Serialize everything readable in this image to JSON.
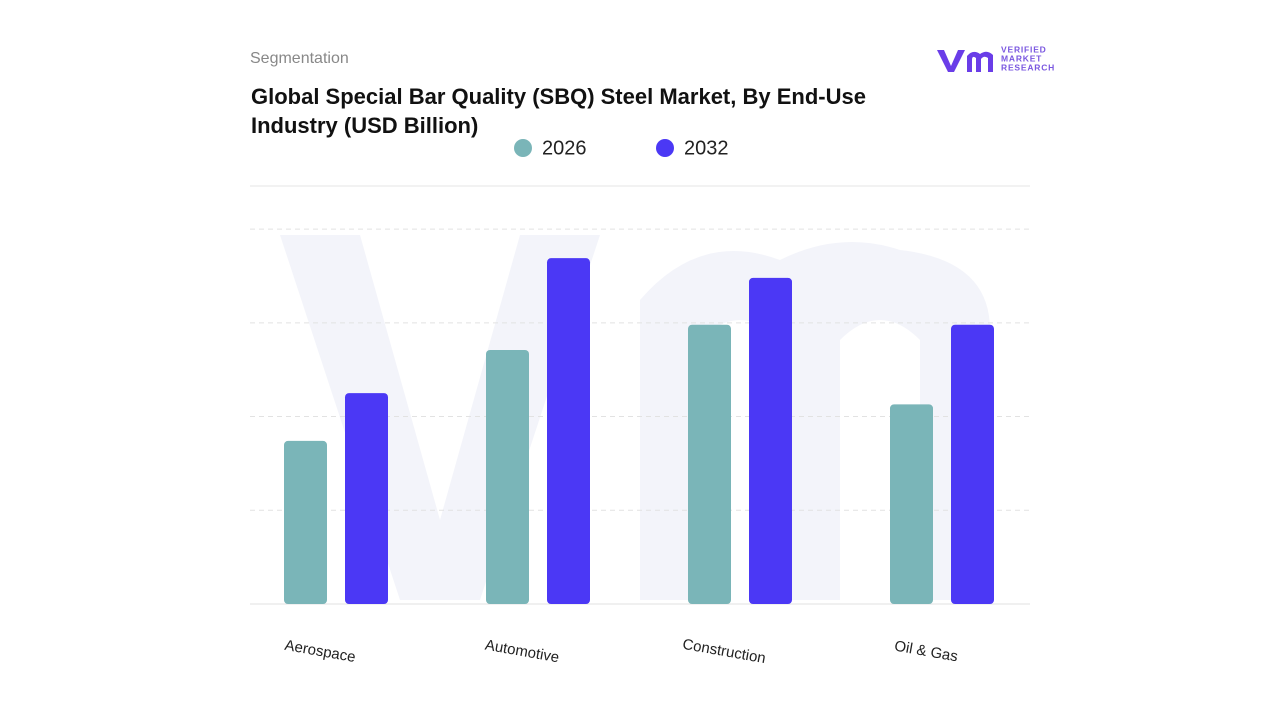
{
  "header": {
    "section": "Segmentation",
    "logo_lines": [
      "VERIFIED",
      "MARKET",
      "RESEARCH"
    ]
  },
  "chart_data": {
    "type": "bar",
    "title": "Global Special Bar Quality (SBQ) Steel Market, By End-Use Industry (USD Billion)",
    "categories": [
      "Aerospace",
      "Automotive",
      "Construction",
      "Oil & Gas"
    ],
    "series": [
      {
        "name": "2026",
        "color": "#7ab5b8",
        "values": [
          1.74,
          2.71,
          2.98,
          2.13
        ]
      },
      {
        "name": "2032",
        "color": "#4b38f5",
        "values": [
          2.25,
          3.69,
          3.48,
          2.98
        ]
      }
    ],
    "ylim": [
      0,
      4.46
    ],
    "yticks": [
      1,
      2,
      3,
      4
    ],
    "grid": true
  }
}
